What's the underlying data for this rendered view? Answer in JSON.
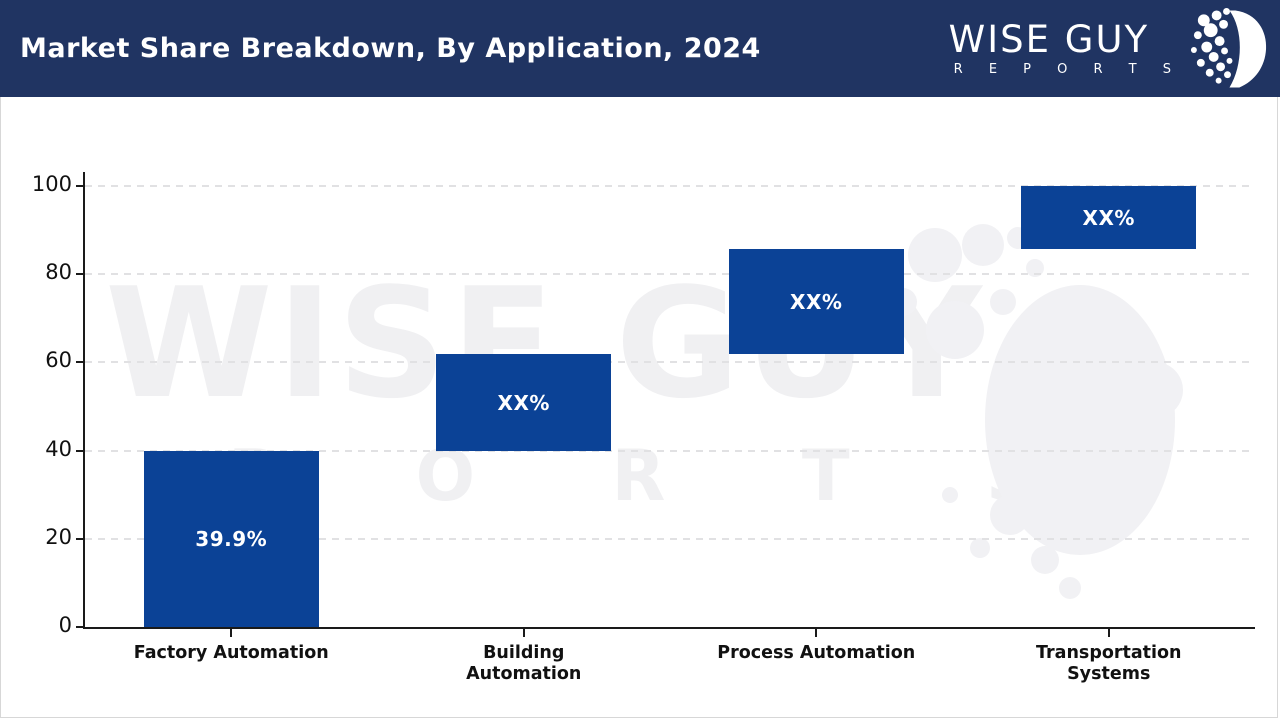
{
  "header": {
    "title": "Market Share Breakdown, By Application, 2024",
    "logo_line1": "WISE GUY",
    "logo_line2": "R E P O R T S"
  },
  "watermark": {
    "line1": "WISE GUY",
    "line2": "P O R T S"
  },
  "icons": {
    "logo_face": "dotted-head-profile-icon",
    "watermark_face": "dotted-head-profile-watermark"
  },
  "colors": {
    "header_bg": "#203462",
    "bar": "#0b4296",
    "grid": "#e1e1e3",
    "axis": "#1a1a1a",
    "watermark": "#f0f0f2",
    "value_label": "#ffffff"
  },
  "chart_data": {
    "type": "bar",
    "subtype": "waterfall",
    "title": "Market Share Breakdown, By Application, 2024",
    "categories": [
      "Factory Automation",
      "Building Automation",
      "Process Automation",
      "Transportation Systems"
    ],
    "category_lines": [
      [
        "Factory Automation"
      ],
      [
        "Building",
        "Automation"
      ],
      [
        "Process Automation"
      ],
      [
        "Transportation",
        "Systems"
      ]
    ],
    "segments": [
      {
        "category": "Factory Automation",
        "start": 0,
        "end": 39.9,
        "label": "39.9%"
      },
      {
        "category": "Building Automation",
        "start": 39.9,
        "end": 61.8,
        "label": "XX%"
      },
      {
        "category": "Process Automation",
        "start": 61.8,
        "end": 85.7,
        "label": "XX%"
      },
      {
        "category": "Transportation Systems",
        "start": 85.7,
        "end": 100,
        "label": "XX%"
      }
    ],
    "xlabel": "",
    "ylabel": "",
    "ylim": [
      0,
      100
    ],
    "yticks": [
      0,
      20,
      40,
      60,
      80,
      100
    ],
    "grid": "horizontal-dashed",
    "legend": "none",
    "bar_color": "#0b4296"
  }
}
